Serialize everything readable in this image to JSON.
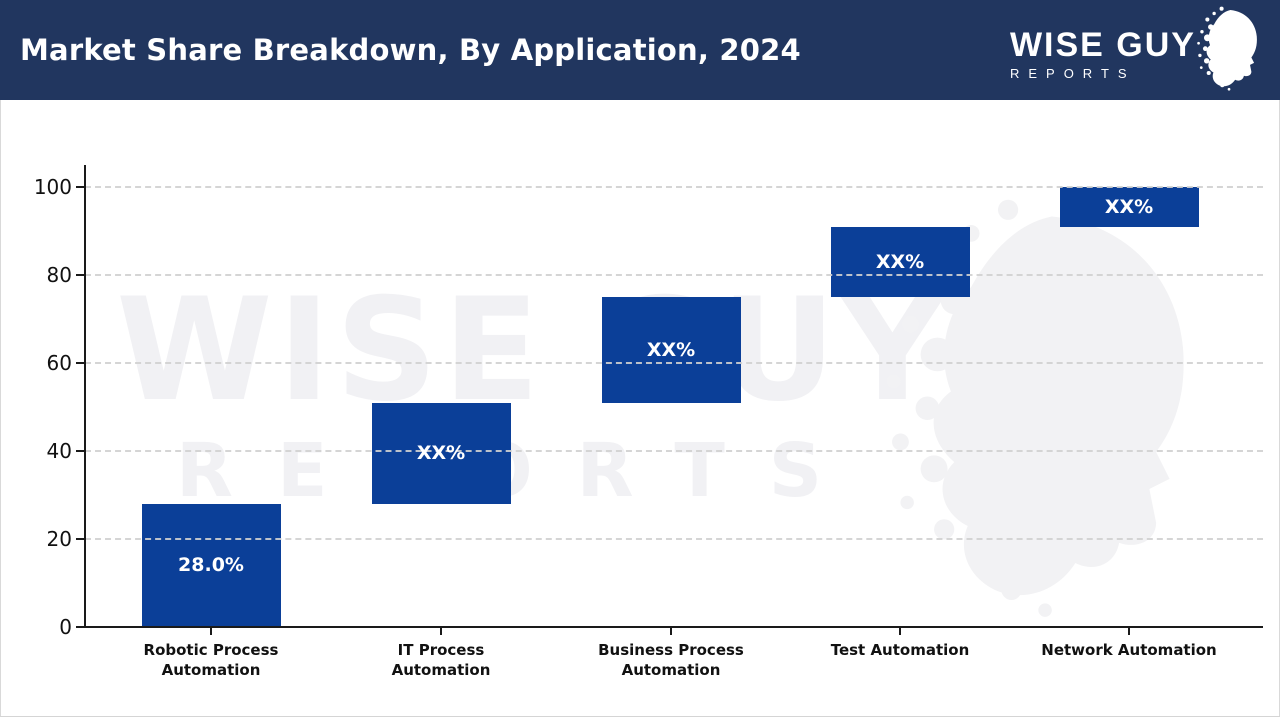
{
  "header": {
    "title": "Market Share Breakdown, By Application, 2024",
    "bg_color": "#21365f",
    "logo": {
      "line1": "WISE GUY",
      "line2": "REPORTS"
    }
  },
  "watermark": {
    "line1": "WISE GUY",
    "line2": "REPORTS"
  },
  "chart_data": {
    "type": "bar",
    "subtype": "floating-waterfall",
    "title": "Market Share Breakdown, By Application, 2024",
    "categories": [
      "Robotic Process Automation",
      "IT Process Automation",
      "Business Process Automation",
      "Test Automation",
      "Network Automation"
    ],
    "segments": [
      {
        "category": "Robotic Process Automation",
        "start": 0,
        "end": 28,
        "label": "28.0%"
      },
      {
        "category": "IT Process Automation",
        "start": 28,
        "end": 51,
        "label": "XX%"
      },
      {
        "category": "Business Process Automation",
        "start": 51,
        "end": 75,
        "label": "XX%"
      },
      {
        "category": "Test Automation",
        "start": 75,
        "end": 91,
        "label": "XX%"
      },
      {
        "category": "Network Automation",
        "start": 91,
        "end": 100,
        "label": "XX%"
      }
    ],
    "yticks": [
      0,
      20,
      40,
      60,
      80,
      100
    ],
    "ylim": [
      0,
      105
    ],
    "xlabel": "",
    "ylabel": "",
    "grid": "horizontal-dashed",
    "legend": "none",
    "bar_color": "#0b3f98",
    "bar_label_color": "#ffffff",
    "grid_color": "#d0d0d0",
    "axis_color": "#1a1a1a"
  }
}
